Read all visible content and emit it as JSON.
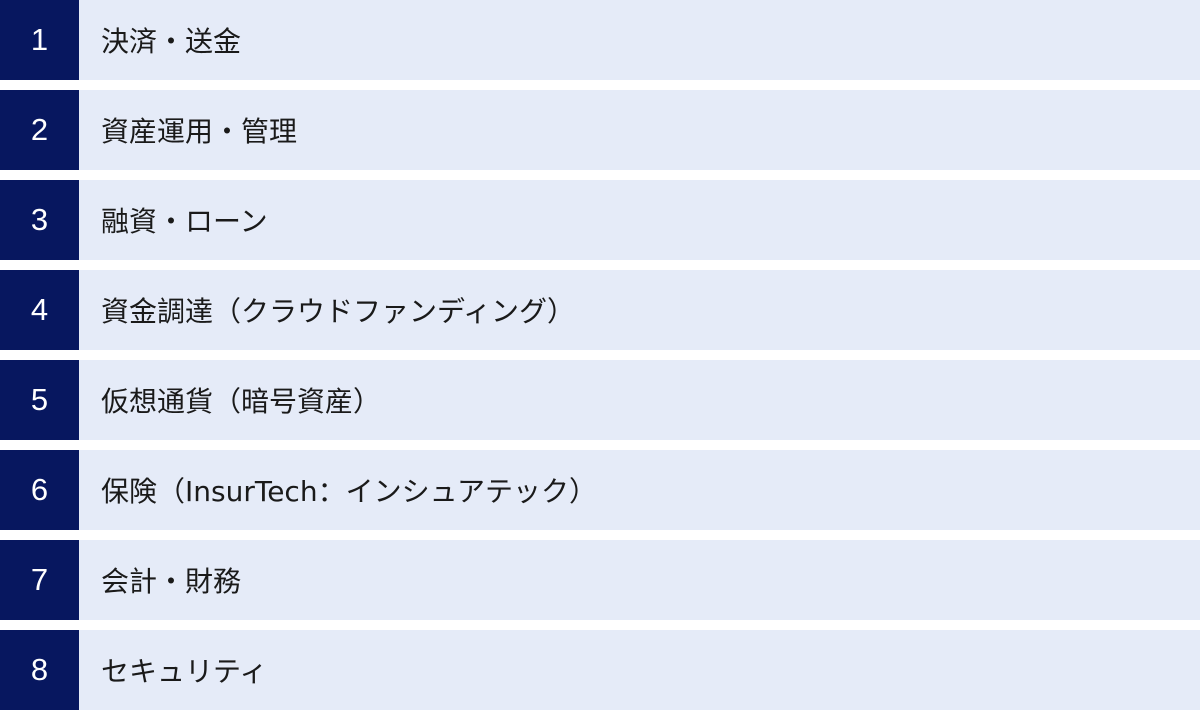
{
  "colors": {
    "number_bg": "#07175f",
    "row_bg": "#e5ebf8",
    "number_text": "#ffffff",
    "label_text": "#1a1a1a"
  },
  "items": [
    {
      "number": "1",
      "label": "決済・送金"
    },
    {
      "number": "2",
      "label": "資産運用・管理"
    },
    {
      "number": "3",
      "label": "融資・ローン"
    },
    {
      "number": "4",
      "label": "資金調達（クラウドファンディング）"
    },
    {
      "number": "5",
      "label": "仮想通貨（暗号資産）"
    },
    {
      "number": "6",
      "label": "保険（InsurTech：インシュアテック）"
    },
    {
      "number": "7",
      "label": "会計・財務"
    },
    {
      "number": "8",
      "label": "セキュリティ"
    }
  ]
}
